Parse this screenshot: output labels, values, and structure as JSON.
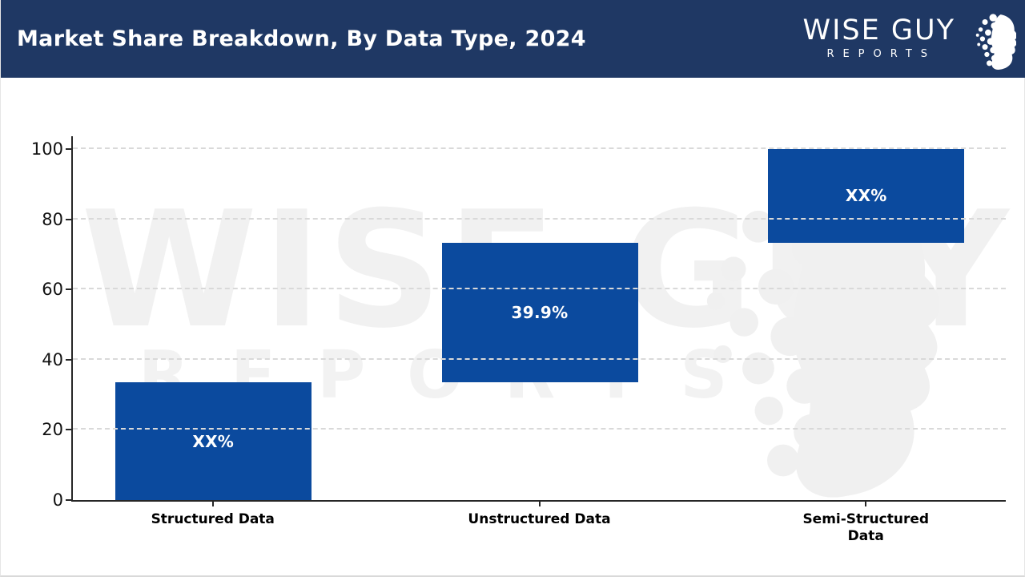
{
  "header": {
    "title": "Market Share Breakdown, By Data Type, 2024",
    "bg_color": "#1f3864",
    "logo": {
      "line1": "WISE GUY",
      "line2": "REPORTS"
    }
  },
  "watermark": {
    "line1": "WISE GUY",
    "line2": "REPORTS"
  },
  "chart_data": {
    "type": "bar",
    "variant": "floating-waterfall",
    "title": "Market Share Breakdown, By Data Type, 2024",
    "categories": [
      "Structured Data",
      "Unstructured Data",
      "Semi-Structured Data"
    ],
    "bars": [
      {
        "category": "Structured Data",
        "start": 0,
        "end": 33.5,
        "label": "XX%"
      },
      {
        "category": "Unstructured Data",
        "start": 33.5,
        "end": 73.4,
        "label": "39.9%"
      },
      {
        "category": "Semi-Structured Data",
        "start": 73.4,
        "end": 100,
        "label": "XX%"
      }
    ],
    "yticks": [
      0,
      20,
      40,
      60,
      80,
      100
    ],
    "ylim": [
      0,
      104
    ],
    "xlabel": "",
    "ylabel": "",
    "bar_color": "#0b4a9e",
    "grid": "horizontal-dashed",
    "gridline_color": "#d9d9d9",
    "axis_color": "#262626",
    "legend": null
  }
}
